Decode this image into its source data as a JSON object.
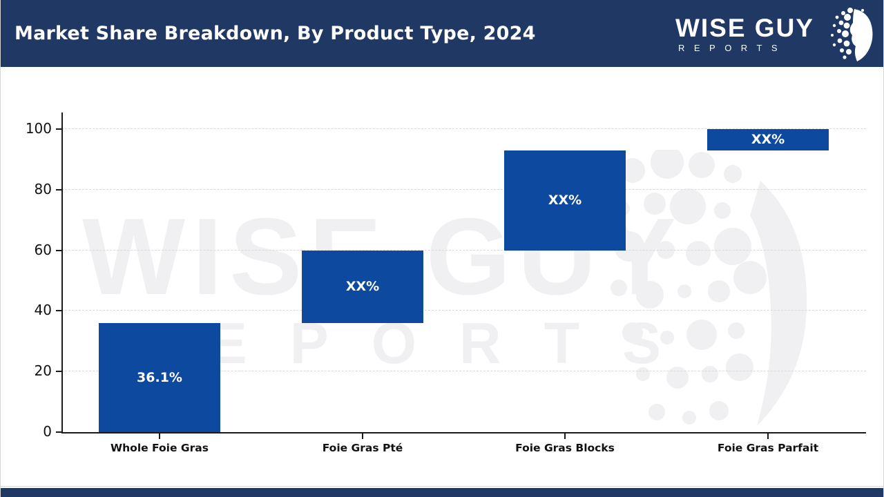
{
  "header": {
    "title": "Market Share Breakdown, By Product Type, 2024"
  },
  "logo": {
    "line1": "WISE GUY",
    "line2": "REPORTS"
  },
  "watermark": {
    "line1": "WISE GUY",
    "line2": "REPORTS"
  },
  "colors": {
    "header_bg": "#1f3864",
    "footer_bg": "#1f3864",
    "bar": "#0d4a9f",
    "bar_label": "#ffffff",
    "grid": "#d9d9d9",
    "axis": "#1a1a1a",
    "watermark": "#f0f0f2"
  },
  "chart_data": {
    "type": "bar",
    "subtype": "waterfall-floating-bars",
    "title": "Market Share Breakdown, By Product Type, 2024",
    "categories": [
      "Whole Foie Gras",
      "Foie Gras Pté",
      "Foie Gras Blocks",
      "Foie Gras Parfait"
    ],
    "segments": [
      {
        "start": 0,
        "end": 36.1,
        "label": "36.1%"
      },
      {
        "start": 36.1,
        "end": 60,
        "label": "XX%"
      },
      {
        "start": 60,
        "end": 93,
        "label": "XX%"
      },
      {
        "start": 93,
        "end": 100,
        "label": "XX%"
      }
    ],
    "xlabel": "",
    "ylabel": "",
    "ylim": [
      0,
      104
    ],
    "yticks": [
      0,
      20,
      40,
      60,
      80,
      100
    ],
    "grid": "horizontal-dashed",
    "legend": "none"
  }
}
